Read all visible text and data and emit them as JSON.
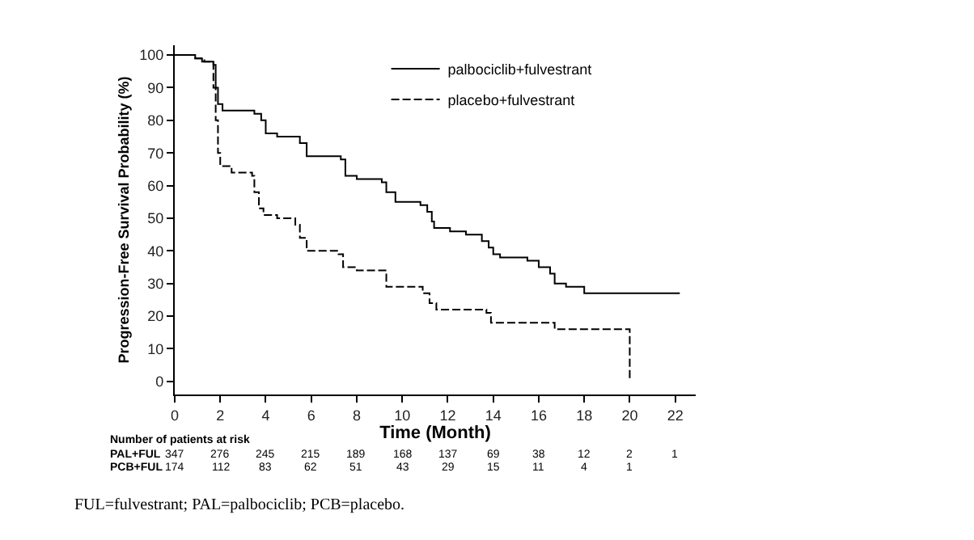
{
  "chart_data": {
    "type": "step",
    "xlabel": "Time (Month)",
    "ylabel": "Progression-Free Survival Probability (%)",
    "xlim": [
      0,
      22.9
    ],
    "ylim": [
      -4,
      103
    ],
    "xticks": [
      0,
      2,
      4,
      6,
      8,
      10,
      12,
      14,
      16,
      18,
      20,
      22
    ],
    "yticks": [
      0,
      10,
      20,
      30,
      40,
      50,
      60,
      70,
      80,
      90,
      100
    ],
    "legend": "top right",
    "marker": "none",
    "series": [
      {
        "name": "palbociclib+fulvestrant",
        "color": "#000000",
        "line_style": "solid",
        "x": [
          0,
          0.9,
          1.2,
          1.7,
          1.8,
          1.9,
          2.1,
          3.5,
          3.8,
          4.0,
          4.5,
          5.5,
          5.8,
          7.3,
          7.5,
          8.0,
          9.1,
          9.3,
          9.7,
          10.8,
          11.1,
          11.3,
          11.4,
          12.1,
          12.8,
          13.5,
          13.8,
          14.0,
          14.3,
          15.5,
          16.0,
          16.5,
          16.7,
          17.2,
          18.0,
          22.2
        ],
        "values": [
          100,
          99,
          98,
          97,
          90,
          85,
          83,
          82,
          80,
          76,
          75,
          73,
          69,
          68,
          63,
          62,
          61,
          58,
          55,
          54,
          52,
          49,
          47,
          46,
          45,
          43,
          41,
          39,
          38,
          37,
          35,
          33,
          30,
          29,
          27,
          27
        ]
      },
      {
        "name": "placebo+fulvestrant",
        "color": "#000000",
        "line_style": "dashed",
        "x": [
          0,
          0.9,
          1.3,
          1.7,
          1.8,
          1.9,
          2.0,
          2.5,
          3.4,
          3.5,
          3.7,
          3.9,
          4.5,
          5.3,
          5.5,
          5.8,
          7.2,
          7.4,
          8.0,
          9.3,
          10.9,
          11.2,
          11.5,
          13.7,
          13.9,
          16.7,
          20.0,
          20.0
        ],
        "values": [
          100,
          99,
          98,
          90,
          80,
          70,
          66,
          64,
          63,
          58,
          53,
          51,
          50,
          48,
          44,
          40,
          39,
          35,
          34,
          29,
          27,
          24,
          22,
          21,
          18,
          16,
          16,
          0
        ]
      }
    ],
    "annotations": [
      "Number of patients at risk",
      "PAL+FUL 347 276 245 215 189 168 137 69 38 12 2 1",
      "PCB+FUL 174 112 83 62 51 43 29 15 11 4 1",
      "FUL=fulvestrant; PAL=palbociclib; PCB=placebo."
    ]
  }
}
